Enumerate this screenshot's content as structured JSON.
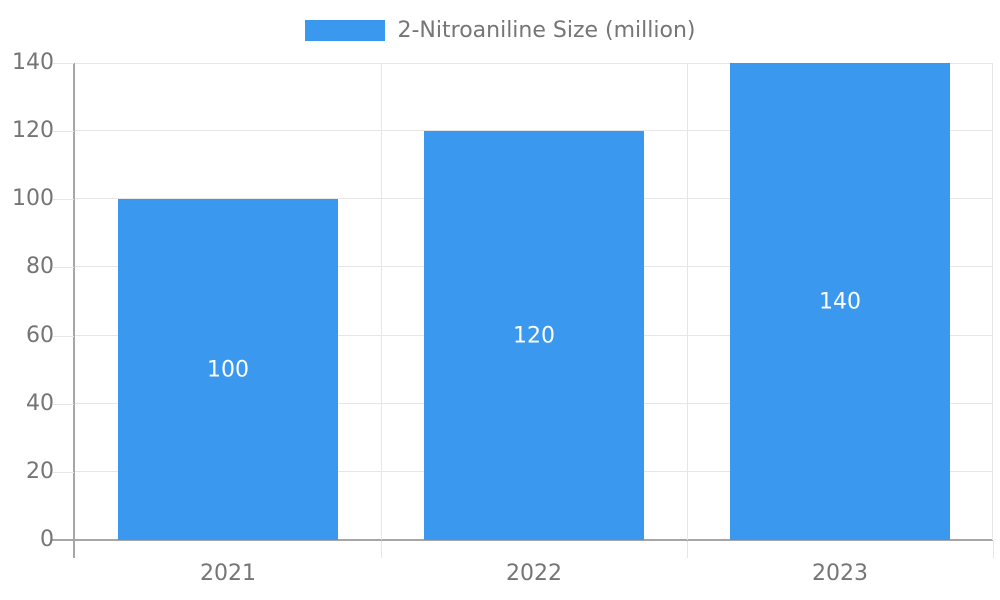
{
  "legend": {
    "label": "2-Nitroaniline Size (million)"
  },
  "colors": {
    "bar": "#3A99EE",
    "grid": "#E6E6E6",
    "axis": "#A6A6A6",
    "tick_text": "#757575",
    "legend_text": "#757575",
    "bar_label_text": "#FFFFFF",
    "background": "#FFFFFF"
  },
  "chart_data": {
    "type": "bar",
    "title": "",
    "categories": [
      "2021",
      "2022",
      "2023"
    ],
    "series": [
      {
        "name": "2-Nitroaniline Size (million)",
        "values": [
          100,
          120,
          140
        ]
      }
    ],
    "bar_labels": [
      "100",
      "120",
      "140"
    ],
    "xlabel": "",
    "ylabel": "",
    "ylim": [
      0,
      140
    ],
    "yticks": [
      0,
      20,
      40,
      60,
      80,
      100,
      120,
      140
    ],
    "grid": true,
    "legend_position": "top-center"
  }
}
